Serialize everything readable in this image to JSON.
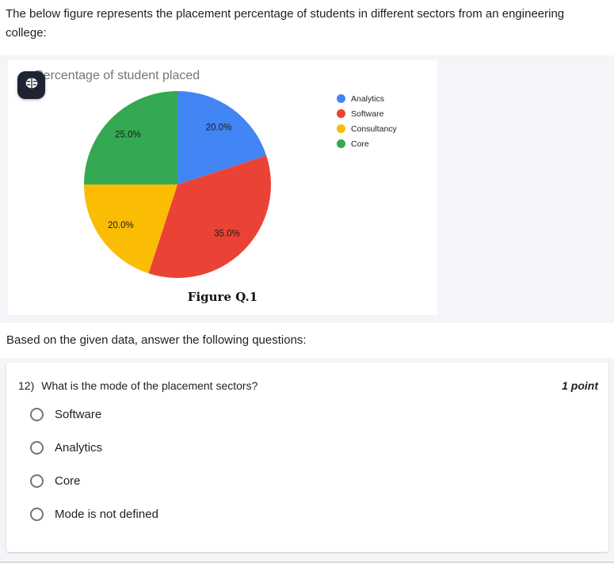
{
  "page": {
    "intro_text": "The below figure represents the placement percentage of students in different sectors from an engineering college:",
    "section_prompt": "Based on the given data, answer the following questions:"
  },
  "chart_card": {
    "caption": "Figure Q.1",
    "app_icon": "brain-icon"
  },
  "chart_data": {
    "type": "pie",
    "title": "Percentage of student placed",
    "categories": [
      "Analytics",
      "Software",
      "Consultancy",
      "Core"
    ],
    "values": [
      20,
      35,
      20,
      25
    ],
    "slice_labels": [
      "20.0%",
      "35.0%",
      "20.0%",
      "25.0%"
    ],
    "colors": [
      "#4285F4",
      "#EA4335",
      "#FBBC04",
      "#34A853"
    ],
    "start_angle_deg": 0,
    "direction": "clockwise",
    "legend_position": "right",
    "label_color": "#1b1b1b"
  },
  "question": {
    "number": "12)",
    "text": "What is the mode of the placement sectors?",
    "points_label": "1 point",
    "options": [
      {
        "label": "Software",
        "selected": false
      },
      {
        "label": "Analytics",
        "selected": false
      },
      {
        "label": "Core",
        "selected": false
      },
      {
        "label": "Mode is not defined",
        "selected": false
      }
    ]
  }
}
